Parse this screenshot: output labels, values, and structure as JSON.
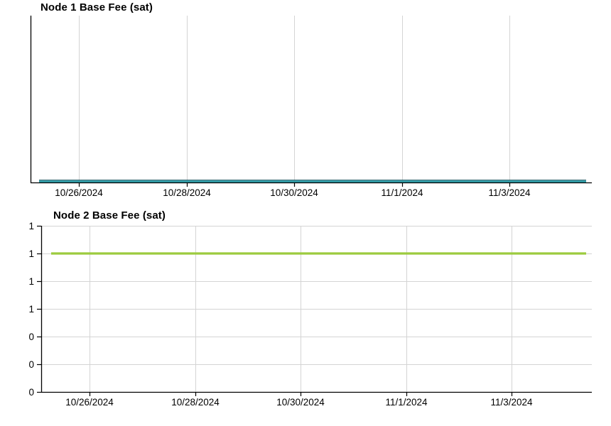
{
  "page": {
    "background": "#ffffff",
    "text_color": "#000000",
    "axis_color": "#000000",
    "grid_color": "#d4d4d4"
  },
  "chart_data": [
    {
      "type": "line",
      "title": "Node 1 Base Fee (sat)",
      "xlabel": "",
      "ylabel": "",
      "x_tick_labels": [
        "10/26/2024",
        "10/28/2024",
        "10/30/2024",
        "11/1/2024",
        "11/3/2024"
      ],
      "y_tick_labels": [],
      "y_tick_values": [],
      "ylim": [
        0,
        1
      ],
      "x_range": [
        "10/25/2024",
        "11/4/2024"
      ],
      "grid": {
        "vertical": true,
        "horizontal": false
      },
      "legend": "none",
      "series": [
        {
          "name": "Node 1 Base Fee",
          "color": "#2e9ea9",
          "edge_color": "#1a5560",
          "constant_value": 0,
          "x": [
            "10/25/2024",
            "11/4/2024"
          ],
          "values": [
            0,
            0
          ]
        }
      ]
    },
    {
      "type": "line",
      "title": "Node 2 Base Fee (sat)",
      "xlabel": "",
      "ylabel": "",
      "x_tick_labels": [
        "10/26/2024",
        "10/28/2024",
        "10/30/2024",
        "11/1/2024",
        "11/3/2024"
      ],
      "y_tick_labels": [
        "1",
        "1",
        "1",
        "1",
        "0",
        "0",
        "0"
      ],
      "y_tick_values": [
        1.2,
        1.0,
        0.8,
        0.6,
        0.4,
        0.2,
        0
      ],
      "ylim": [
        0,
        1.2
      ],
      "x_range": [
        "10/25/2024",
        "11/4/2024"
      ],
      "grid": {
        "vertical": true,
        "horizontal": true
      },
      "legend": "none",
      "series": [
        {
          "name": "Node 2 Base Fee",
          "color": "#9ccb3e",
          "constant_value": 1,
          "x": [
            "10/25/2024",
            "11/4/2024"
          ],
          "values": [
            1,
            1
          ]
        }
      ]
    }
  ]
}
